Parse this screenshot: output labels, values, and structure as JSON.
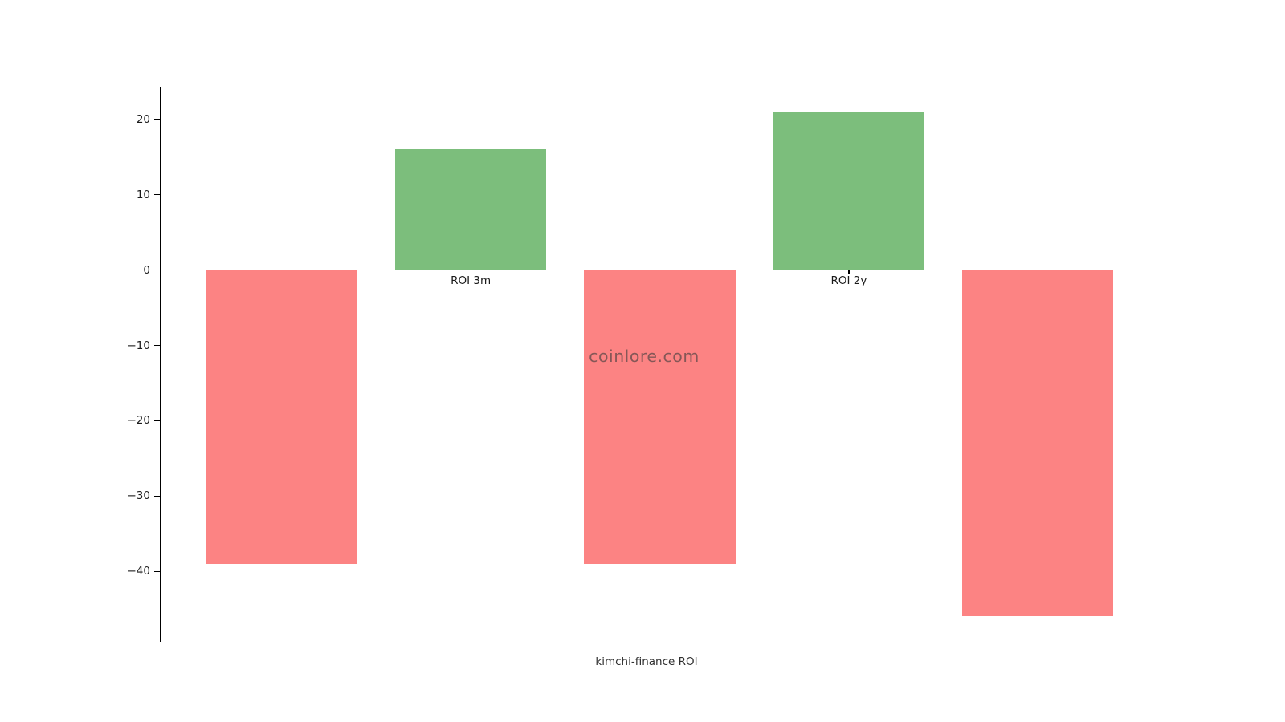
{
  "chart_data": {
    "type": "bar",
    "title": "kimchi-finance ROI",
    "watermark": "coinlore.com",
    "categories": [
      "",
      "ROI 3m",
      "",
      "ROI 2y",
      ""
    ],
    "values": [
      -39,
      16,
      -39,
      21,
      -46
    ],
    "series": [
      {
        "name": "ROI",
        "values": [
          -39,
          16,
          -39,
          21,
          -46
        ]
      }
    ],
    "bar_width": 0.8,
    "xlim": [
      -0.64,
      4.64
    ],
    "ylim": [
      -49.35,
      24.35
    ],
    "yticks": [
      20,
      10,
      0,
      -10,
      -20,
      -30,
      -40
    ],
    "ytick_labels": [
      "20",
      "10",
      "0",
      "−10",
      "−20",
      "−30",
      "−40"
    ],
    "xlabel": "",
    "ylabel": "",
    "grid": false,
    "legend": null,
    "axis_position": "zero",
    "colors": {
      "positive_bar": "#7cbe7c",
      "negative_bar": "#fc8383",
      "axis": "#000000",
      "tick_label": "#1a1a1a",
      "title": "#303030",
      "watermark": "rgba(60,60,60,0.62)",
      "background": "#ffffff"
    }
  }
}
